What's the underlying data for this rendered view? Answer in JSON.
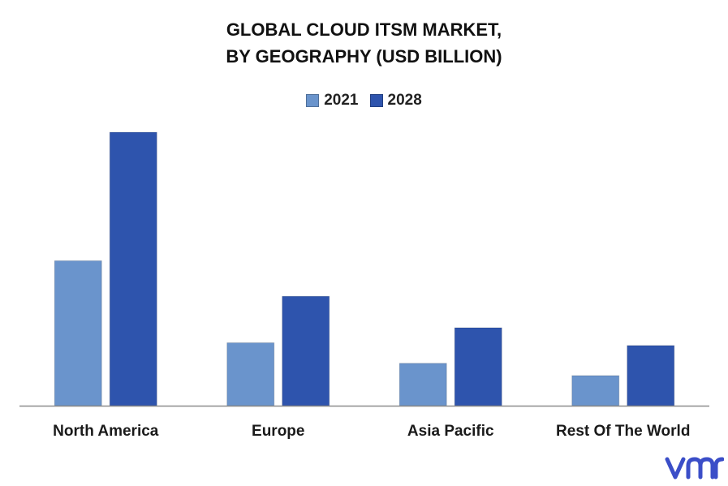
{
  "chart_data": {
    "type": "bar",
    "title_line1": "GLOBAL CLOUD ITSM MARKET,",
    "title_line2": "BY GEOGRAPHY (USD BILLION)",
    "categories": [
      "North America",
      "Europe",
      "Asia Pacific",
      "Rest Of The World"
    ],
    "series": [
      {
        "name": "2021",
        "values": [
          5.3,
          2.3,
          1.55,
          1.1
        ]
      },
      {
        "name": "2028",
        "values": [
          10.0,
          4.0,
          2.85,
          2.2
        ]
      }
    ],
    "ylim": [
      0,
      10
    ],
    "xlabel": "",
    "ylabel": "",
    "grid": false,
    "legend_position": "top"
  },
  "colors": {
    "2021": "#6a94cc",
    "2028": "#2e54ad",
    "axis": "#8c8c8c",
    "logo": "#3b4ec8"
  },
  "logo": {
    "icon": "vmr-logo"
  }
}
